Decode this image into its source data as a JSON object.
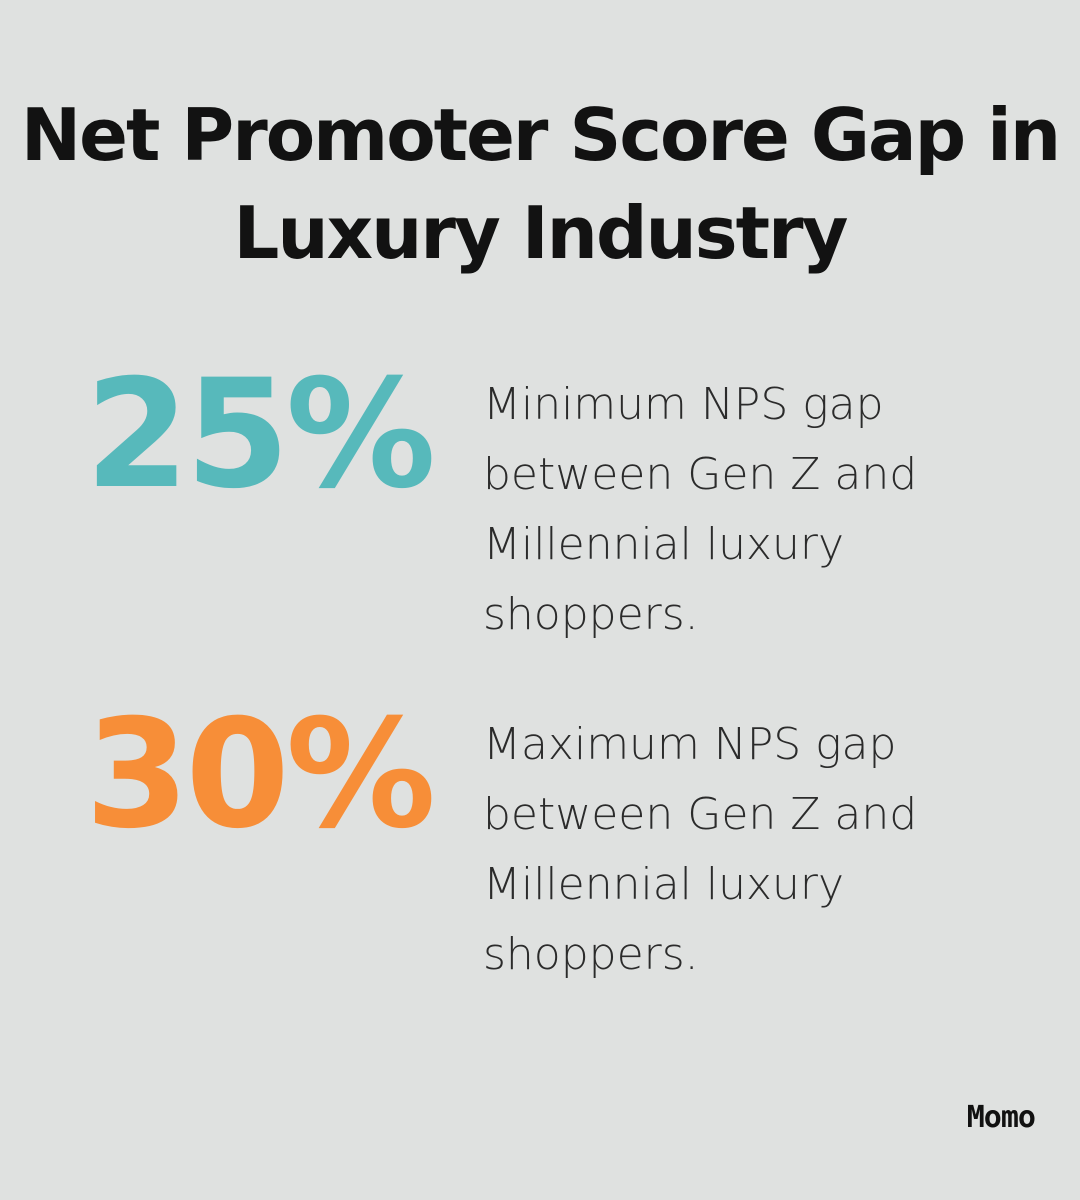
{
  "title": "Net Promoter Score Gap in\nLuxury Industry",
  "stats": [
    {
      "value": "25%",
      "color": "#57b9bb",
      "description": "Minimum NPS gap\nbetween Gen Z and\nMillennial luxury\nshoppers."
    },
    {
      "value": "30%",
      "color": "#f78e38",
      "description": "Maximum NPS gap\nbetween Gen Z and\nMillennial luxury\nshoppers."
    }
  ],
  "brand": "Momo",
  "colors": {
    "background": "#dfe1e0",
    "title_text": "#121212",
    "body_text": "#2b2b2b",
    "brand_text": "#111111"
  },
  "chart_data": {
    "type": "table",
    "title": "Net Promoter Score Gap in Luxury Industry",
    "categories": [
      "Minimum NPS gap between Gen Z and Millennial luxury shoppers",
      "Maximum NPS gap between Gen Z and Millennial luxury shoppers"
    ],
    "values": [
      25,
      30
    ],
    "unit": "%",
    "value_colors": [
      "#57b9bb",
      "#f78e38"
    ]
  }
}
